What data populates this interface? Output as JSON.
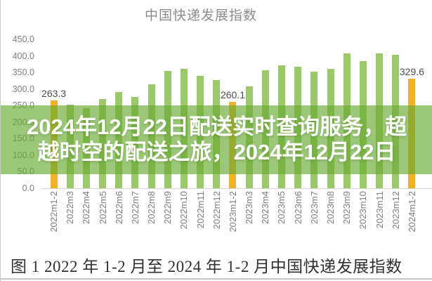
{
  "page": {
    "background": "#ffffff"
  },
  "chart_data": {
    "type": "bar",
    "title": "中国快递发展指数",
    "categories": [
      "2022m1-2",
      "2022m3",
      "2022m4",
      "2022m5",
      "2022m6",
      "2022m7",
      "2022m8",
      "2022m9",
      "2022m10",
      "2022m11",
      "2022m12",
      "2023m1-2",
      "2023m3",
      "2023m4",
      "2023m5",
      "2023m6",
      "2023m7",
      "2023m8",
      "2023m9",
      "2023m10",
      "2023m11",
      "2023m12",
      "2024m1-2"
    ],
    "values": [
      263.3,
      251,
      241,
      268,
      289,
      275,
      312,
      352,
      359,
      338,
      325,
      260.1,
      306,
      355,
      370,
      365,
      351,
      359,
      406,
      382,
      406,
      401,
      329.6
    ],
    "highlight_indices": [
      0,
      11,
      22
    ],
    "data_labels": [
      {
        "index": 0,
        "text": "263.3"
      },
      {
        "index": 11,
        "text": "260.1"
      },
      {
        "index": 22,
        "text": "329.6"
      }
    ],
    "ylim": [
      0,
      450
    ],
    "ytick_labels": [
      "450.0",
      "400.0",
      "350.0",
      "300.0",
      "250.0",
      "200.0",
      "150.0",
      "100.0",
      "50.0",
      "0.0"
    ],
    "bar_color": "#9BC869",
    "highlight_color": "#F1B126",
    "axis_text_color": "#7f7f7f",
    "grid": false,
    "legend": false
  },
  "banner": {
    "line1": "2024年12月22日配送实时查询服务，超",
    "line2": "越时空的配送之旅，2024年12月22日",
    "full_text": "2024年12月22日配送实时查询服务，超越时空的配送之旅，2024年12月22日",
    "overlay_color": "#69AA32",
    "text_color": "#FFFFFF"
  },
  "caption": {
    "text": "图 1  2022 年 1-2 月至 2024 年 1-2 月中国快递发展指数"
  }
}
